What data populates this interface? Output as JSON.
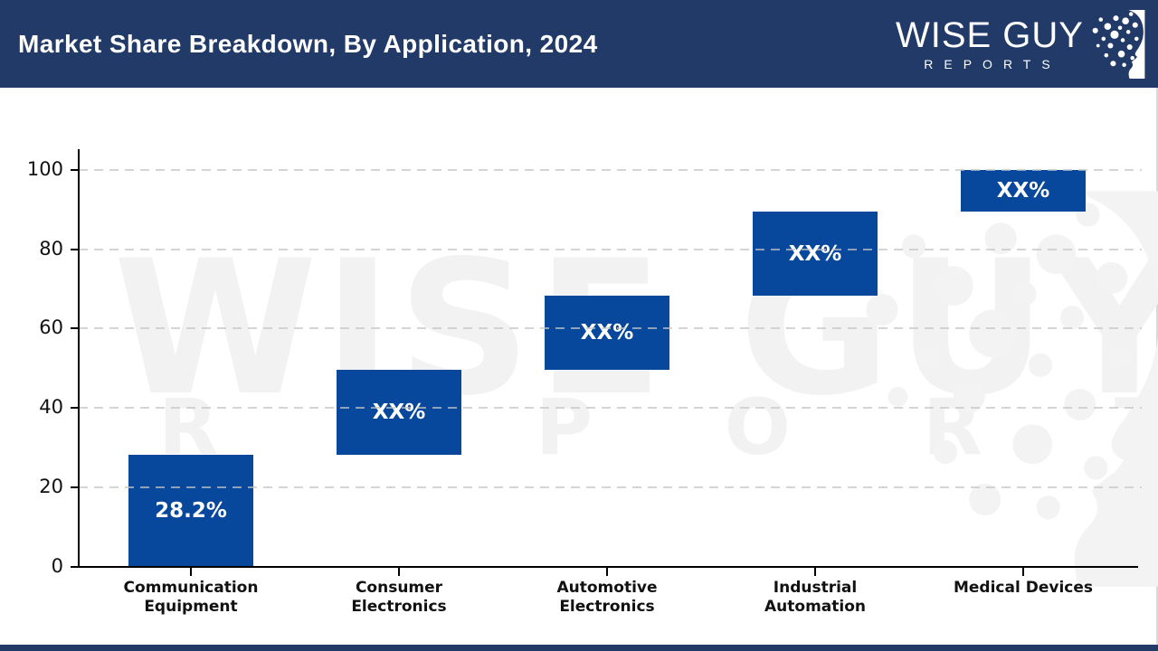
{
  "header": {
    "title": "Market Share Breakdown, By Application, 2024",
    "logo": {
      "line1": "WISE GUY",
      "line2": "REPORTS"
    }
  },
  "watermark": {
    "line1": "WISE GUY",
    "line2": "R E P O R T S"
  },
  "colors": {
    "header_bg": "#213A68",
    "bar": "#07489C",
    "bar_label": "#FFFFFF",
    "axis": "#000000",
    "grid": "#C9C9C9",
    "watermark": "#F2F2F2"
  },
  "chart_data": {
    "type": "bar",
    "subtype": "waterfall",
    "title": "Market Share Breakdown, By Application, 2024",
    "categories": [
      [
        "Communication",
        "Equipment"
      ],
      [
        "Consumer",
        "Electronics"
      ],
      [
        "Automotive",
        "Electronics"
      ],
      [
        "Industrial",
        "Automation"
      ],
      [
        "Medical Devices"
      ]
    ],
    "segments": [
      {
        "category": "Communication Equipment",
        "start": 0,
        "end": 28.2,
        "label": "28.2%"
      },
      {
        "category": "Consumer Electronics",
        "start": 28.2,
        "end": 49.5,
        "label": "XX%"
      },
      {
        "category": "Automotive Electronics",
        "start": 49.5,
        "end": 68.2,
        "label": "XX%"
      },
      {
        "category": "Industrial Automation",
        "start": 68.2,
        "end": 89.4,
        "label": "XX%"
      },
      {
        "category": "Medical Devices",
        "start": 89.4,
        "end": 100,
        "label": "XX%"
      }
    ],
    "yticks": [
      0,
      20,
      40,
      60,
      80,
      100
    ],
    "ylim": [
      0,
      105
    ],
    "xlabel": "",
    "ylabel": "",
    "grid": true,
    "legend": false
  }
}
